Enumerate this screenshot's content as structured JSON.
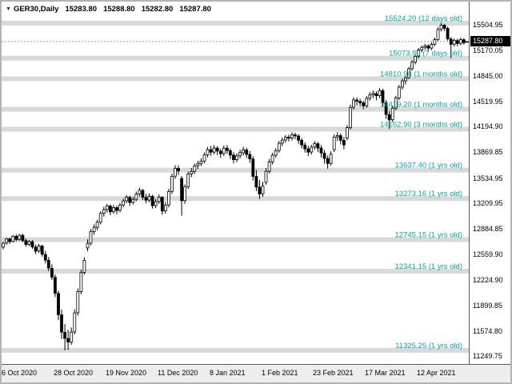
{
  "header": {
    "dropdown_icon": "▼",
    "symbol": "GER30,Daily",
    "open": "15283.80",
    "high": "15288.80",
    "low": "15282.80",
    "close": "15287.80"
  },
  "colors": {
    "band": "#d9d9d9",
    "level_label": "#00a9a9",
    "candle": "#000000",
    "bull_fill": "#ffffff",
    "price_tag_bg": "#000000",
    "price_tag_text": "#ffffff"
  },
  "price_axis": {
    "current": "15287.80",
    "ticks": [
      "15504.95",
      "15170.05",
      "14845.00",
      "14519.95",
      "14194.90",
      "13869.85",
      "13534.95",
      "13209.95",
      "12884.85",
      "12559.90",
      "12224.90",
      "11899.85",
      "11574.80",
      "11249.75"
    ]
  },
  "chart_data": {
    "type": "candlestick",
    "symbol": "GER30",
    "timeframe": "Daily",
    "current_price": 15287.8,
    "ylim": [
      11150,
      15800
    ],
    "grid": false,
    "x_labels": [
      "6 Oct 2020",
      "28 Oct 2020",
      "19 Nov 2020",
      "11 Dec 2020",
      "8 Jan 2021",
      "1 Feb 2021",
      "23 Feb 2021",
      "17 Mar 2021",
      "12 Apr 2021"
    ],
    "x_label_indices": [
      1,
      17,
      33,
      49,
      65,
      81,
      97,
      113,
      129
    ],
    "levels": [
      {
        "price": 15524.2,
        "text": "15524.20 (12 days old)"
      },
      {
        "price": 15073.8,
        "text": "15073.80 (7 days old)"
      },
      {
        "price": 14810.9,
        "text": "14810.90 (1 months old)"
      },
      {
        "price": 14419.2,
        "text": "14419.20 (1 months old)"
      },
      {
        "price": 14162.9,
        "text": "14162.90 (3 months old)"
      },
      {
        "price": 13637.4,
        "text": "13637.40 (1 yrs old)"
      },
      {
        "price": 13273.16,
        "text": "13273.16 (1 yrs old)"
      },
      {
        "price": 12745.15,
        "text": "12745.15 (1 yrs old)"
      },
      {
        "price": 12341.15,
        "text": "12341.15 (1 yrs old)"
      },
      {
        "price": 11325.25,
        "text": "11325.25 (1 yrs old)"
      }
    ],
    "candles": [
      [
        12650,
        12718,
        12622,
        12700
      ],
      [
        12702,
        12768,
        12680,
        12755
      ],
      [
        12753,
        12772,
        12690,
        12720
      ],
      [
        12722,
        12804,
        12708,
        12790
      ],
      [
        12788,
        12812,
        12724,
        12748
      ],
      [
        12750,
        12818,
        12732,
        12802
      ],
      [
        12800,
        12822,
        12712,
        12735
      ],
      [
        12733,
        12760,
        12655,
        12684
      ],
      [
        12686,
        12740,
        12662,
        12722
      ],
      [
        12720,
        12738,
        12628,
        12652
      ],
      [
        12650,
        12684,
        12560,
        12598
      ],
      [
        12600,
        12692,
        12575,
        12665
      ],
      [
        12663,
        12680,
        12528,
        12558
      ],
      [
        12556,
        12600,
        12440,
        12482
      ],
      [
        12480,
        12522,
        12342,
        12380
      ],
      [
        12378,
        12430,
        12228,
        12265
      ],
      [
        12262,
        12300,
        12010,
        12058
      ],
      [
        12055,
        12090,
        11712,
        11782
      ],
      [
        11780,
        11848,
        11470,
        11558
      ],
      [
        11556,
        11662,
        11326,
        11478
      ],
      [
        11476,
        11590,
        11332,
        11432
      ],
      [
        11434,
        11618,
        11398,
        11560
      ],
      [
        11562,
        11850,
        11530,
        11805
      ],
      [
        11808,
        12120,
        11770,
        12078
      ],
      [
        12080,
        12360,
        12042,
        12322
      ],
      [
        12326,
        12520,
        12300,
        12480
      ],
      [
        12640,
        12748,
        12596,
        12698
      ],
      [
        12700,
        12880,
        12672,
        12852
      ],
      [
        12850,
        12942,
        12808,
        12905
      ],
      [
        12903,
        13000,
        12868,
        12968
      ],
      [
        12970,
        13110,
        12942,
        13082
      ],
      [
        13084,
        13168,
        13040,
        13130
      ],
      [
        13132,
        13205,
        13092,
        13178
      ],
      [
        13176,
        13198,
        13060,
        13102
      ],
      [
        13104,
        13190,
        13078,
        13158
      ],
      [
        13156,
        13180,
        13072,
        13120
      ],
      [
        13122,
        13215,
        13098,
        13188
      ],
      [
        13190,
        13270,
        13160,
        13242
      ],
      [
        13244,
        13318,
        13212,
        13290
      ],
      [
        13288,
        13310,
        13178,
        13222
      ],
      [
        13224,
        13295,
        13196,
        13262
      ],
      [
        13264,
        13362,
        13240,
        13330
      ],
      [
        13332,
        13412,
        13302,
        13378
      ],
      [
        13376,
        13398,
        13255,
        13290
      ],
      [
        13288,
        13330,
        13212,
        13252
      ],
      [
        13254,
        13338,
        13226,
        13302
      ],
      [
        13300,
        13322,
        13142,
        13182
      ],
      [
        13184,
        13268,
        13150,
        13232
      ],
      [
        13234,
        13325,
        13205,
        13290
      ],
      [
        13288,
        13302,
        13065,
        13112
      ],
      [
        13114,
        13230,
        13080,
        13190
      ],
      [
        13192,
        13398,
        13160,
        13362
      ],
      [
        13364,
        13592,
        13330,
        13558
      ],
      [
        13560,
        13700,
        13524,
        13662
      ],
      [
        13660,
        13698,
        13575,
        13628
      ],
      [
        13530,
        13562,
        13052,
        13246
      ],
      [
        13248,
        13455,
        13205,
        13422
      ],
      [
        13424,
        13620,
        13395,
        13588
      ],
      [
        13590,
        13665,
        13548,
        13620
      ],
      [
        13622,
        13722,
        13590,
        13692
      ],
      [
        13694,
        13758,
        13652,
        13718
      ],
      [
        13720,
        13790,
        13688,
        13752
      ],
      [
        13754,
        13865,
        13726,
        13832
      ],
      [
        13834,
        13935,
        13802,
        13902
      ],
      [
        13900,
        13948,
        13822,
        13868
      ],
      [
        13870,
        13958,
        13840,
        13922
      ],
      [
        13920,
        13945,
        13830,
        13882
      ],
      [
        13880,
        13912,
        13795,
        13848
      ],
      [
        13850,
        13952,
        13820,
        13920
      ],
      [
        13918,
        13960,
        13845,
        13888
      ],
      [
        13886,
        13915,
        13780,
        13832
      ],
      [
        13830,
        13868,
        13722,
        13772
      ],
      [
        13774,
        13852,
        13740,
        13820
      ],
      [
        13822,
        13898,
        13788,
        13862
      ],
      [
        13860,
        13938,
        13825,
        13898
      ],
      [
        13896,
        13925,
        13792,
        13840
      ],
      [
        13838,
        13880,
        13730,
        13782
      ],
      [
        13780,
        13815,
        13505,
        13558
      ],
      [
        13556,
        13640,
        13368,
        13422
      ],
      [
        13420,
        13512,
        13268,
        13332
      ],
      [
        13334,
        13488,
        13296,
        13432
      ],
      [
        13480,
        13665,
        13450,
        13622
      ],
      [
        13624,
        13782,
        13595,
        13742
      ],
      [
        13744,
        13860,
        13712,
        13828
      ],
      [
        13830,
        13918,
        13798,
        13888
      ],
      [
        13890,
        14012,
        13862,
        13982
      ],
      [
        13984,
        14055,
        13945,
        14022
      ],
      [
        14024,
        14088,
        13990,
        14058
      ],
      [
        14060,
        14092,
        14005,
        14048
      ],
      [
        14050,
        14122,
        14018,
        14092
      ],
      [
        14090,
        14118,
        14035,
        14078
      ],
      [
        14076,
        14100,
        13975,
        14022
      ],
      [
        14020,
        14048,
        13915,
        13962
      ],
      [
        13960,
        13995,
        13862,
        13912
      ],
      [
        13910,
        13948,
        13818,
        13868
      ],
      [
        13870,
        13962,
        13840,
        13932
      ],
      [
        13934,
        14010,
        13900,
        13978
      ],
      [
        13976,
        13998,
        13868,
        13922
      ],
      [
        13920,
        13958,
        13802,
        13858
      ],
      [
        13856,
        13895,
        13722,
        13788
      ],
      [
        13786,
        13825,
        13658,
        13722
      ],
      [
        13724,
        13878,
        13695,
        13842
      ],
      [
        13900,
        14095,
        13870,
        14062
      ],
      [
        14064,
        14125,
        14010,
        14082
      ],
      [
        14080,
        14108,
        13968,
        14022
      ],
      [
        14020,
        14062,
        13905,
        13962
      ],
      [
        14050,
        14215,
        14022,
        14182
      ],
      [
        14184,
        14478,
        14160,
        14442
      ],
      [
        14444,
        14572,
        14415,
        14538
      ],
      [
        14536,
        14568,
        14468,
        14522
      ],
      [
        14520,
        14552,
        14452,
        14502
      ],
      [
        14500,
        14528,
        14418,
        14462
      ],
      [
        14464,
        14588,
        14435,
        14558
      ],
      [
        14560,
        14638,
        14528,
        14602
      ],
      [
        14604,
        14658,
        14562,
        14622
      ],
      [
        14620,
        14648,
        14532,
        14592
      ],
      [
        14594,
        14688,
        14562,
        14658
      ],
      [
        14656,
        14682,
        14458,
        14502
      ],
      [
        14500,
        14535,
        14298,
        14352
      ],
      [
        14350,
        14398,
        14165,
        14282
      ],
      [
        14284,
        14460,
        14252,
        14432
      ],
      [
        14434,
        14592,
        14405,
        14562
      ],
      [
        14564,
        14730,
        14535,
        14702
      ],
      [
        14704,
        14812,
        14672,
        14782
      ],
      [
        14784,
        14848,
        14738,
        14822
      ],
      [
        14824,
        14962,
        14808,
        14938
      ],
      [
        14940,
        15048,
        14912,
        15022
      ],
      [
        15024,
        15125,
        14995,
        15098
      ],
      [
        15100,
        15205,
        15072,
        15178
      ],
      [
        15180,
        15238,
        15148,
        15212
      ],
      [
        15214,
        15258,
        15182,
        15232
      ],
      [
        15230,
        15252,
        15158,
        15202
      ],
      [
        15204,
        15278,
        15178,
        15252
      ],
      [
        15254,
        15338,
        15228,
        15312
      ],
      [
        15314,
        15468,
        15295,
        15442
      ],
      [
        15444,
        15524,
        15418,
        15498
      ],
      [
        15496,
        15512,
        15422,
        15458
      ],
      [
        15456,
        15478,
        15298,
        15322
      ],
      [
        15320,
        15345,
        15075,
        15252
      ],
      [
        15254,
        15328,
        15222,
        15302
      ],
      [
        15300,
        15325,
        15228,
        15262
      ],
      [
        15264,
        15338,
        15240,
        15312
      ],
      [
        15310,
        15332,
        15248,
        15272
      ],
      [
        15283.8,
        15288.8,
        15282.8,
        15287.8
      ]
    ]
  }
}
